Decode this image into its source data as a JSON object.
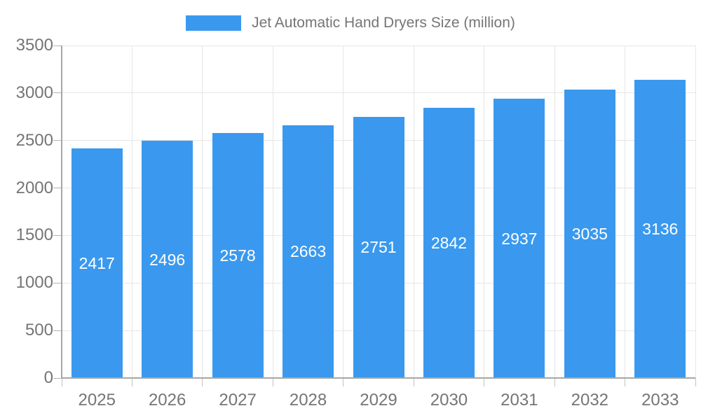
{
  "legend": {
    "label": "Jet Automatic Hand Dryers Size (million)"
  },
  "colors": {
    "bar": "#3a99ee",
    "axis_line": "#a6a6a6",
    "gridline": "#e6e6e6",
    "tick": "#b3b3b3",
    "axis_text": "#757575",
    "bar_label_text": "#ffffff",
    "background": "#ffffff"
  },
  "chart_data": {
    "type": "bar",
    "title": "Jet Automatic Hand Dryers Size (million)",
    "series_name": "Jet Automatic Hand Dryers Size (million)",
    "categories": [
      "2025",
      "2026",
      "2027",
      "2028",
      "2029",
      "2030",
      "2031",
      "2032",
      "2033"
    ],
    "values": [
      2417,
      2496,
      2578,
      2663,
      2751,
      2842,
      2937,
      3035,
      3136
    ],
    "xlabel": "",
    "ylabel": "",
    "ylim": [
      0,
      3500
    ],
    "ytick_step": 500,
    "yticks": [
      0,
      500,
      1000,
      1500,
      2000,
      2500,
      3000,
      3500
    ],
    "grid": true,
    "legend_position": "top",
    "value_labels": "inside-center"
  }
}
